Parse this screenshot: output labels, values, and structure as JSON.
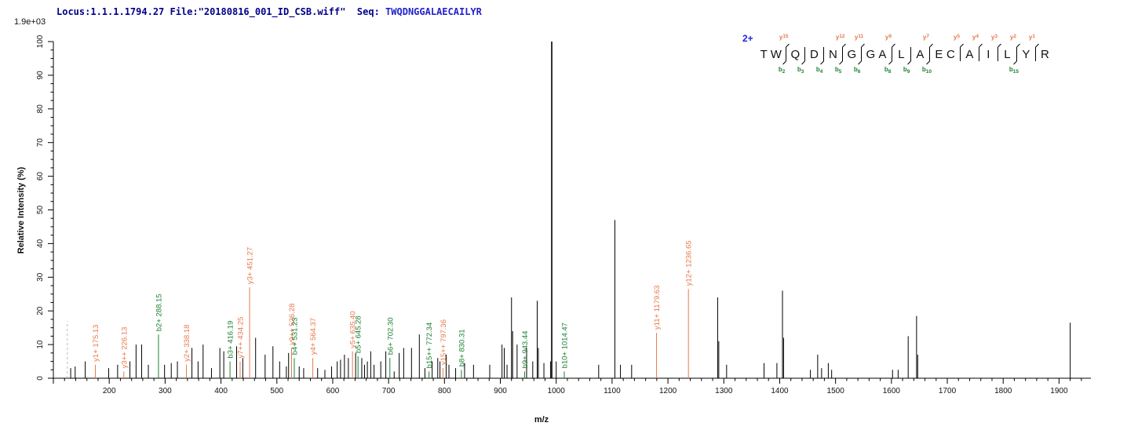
{
  "header": {
    "locus_file": "Locus:1.1.1.1794.27 File:\"20180816_001_ID_CSB.wiff\"",
    "seq_label": "  Seq: ",
    "sequence": "TWQDNGGALAECAILYR",
    "base_intensity": "1.9e+03"
  },
  "annotation": {
    "charge": "2+",
    "residues": [
      "T",
      "W",
      "Q",
      "D",
      "N",
      "G",
      "G",
      "A",
      "L",
      "A",
      "E",
      "C",
      "A",
      "I",
      "L",
      "Y",
      "R"
    ],
    "boundaries": [
      {
        "after": 2,
        "y": "y15",
        "b": "b2"
      },
      {
        "after": 3,
        "y": null,
        "b": "b3"
      },
      {
        "after": 4,
        "y": null,
        "b": "b4"
      },
      {
        "after": 5,
        "y": "y12",
        "b": "b5"
      },
      {
        "after": 6,
        "y": "y11",
        "b": "b6"
      },
      {
        "after": 8,
        "y": "y9",
        "b": "b8"
      },
      {
        "after": 9,
        "y": null,
        "b": "b9"
      },
      {
        "after": 10,
        "y": "y7",
        "b": "b10"
      },
      {
        "after": 12,
        "y": "y5",
        "b": null
      },
      {
        "after": 13,
        "y": "y4",
        "b": null
      },
      {
        "after": 14,
        "y": "y3",
        "b": null
      },
      {
        "after": 15,
        "y": "y2",
        "b": "b15"
      },
      {
        "after": 16,
        "y": "y1",
        "b": null
      }
    ]
  },
  "chart_data": {
    "type": "bar",
    "title": "",
    "xlabel": "m/z",
    "ylabel": "Relative  Intensity (%)",
    "xlim": [
      100,
      1950
    ],
    "ylim": [
      0,
      100
    ],
    "x_major_tick": 100,
    "x_minor_tick": 20,
    "y_major_tick": 10,
    "y_minor_tick": 2.5,
    "x_tick_labels": [
      200,
      300,
      400,
      500,
      600,
      700,
      800,
      900,
      1000,
      1100,
      1200,
      1300,
      1400,
      1500,
      1600,
      1700,
      1800,
      1900
    ],
    "y_tick_labels": [
      0,
      10,
      20,
      30,
      40,
      50,
      60,
      70,
      80,
      90,
      100
    ],
    "legend": "none",
    "grid": false,
    "colors": {
      "y_ion": "#E8784B",
      "b_ion": "#1E8033",
      "unassigned": "#000000",
      "precursor": "#BBBBBB",
      "header_blue": "#00008B",
      "sequence_blue": "#2222CC"
    },
    "peaks": [
      {
        "mz": 125,
        "intensity": 17,
        "series": "precursor"
      },
      {
        "mz": 131,
        "intensity": 3,
        "series": "unassigned"
      },
      {
        "mz": 139,
        "intensity": 3.5,
        "series": "unassigned"
      },
      {
        "mz": 157,
        "intensity": 5,
        "series": "unassigned"
      },
      {
        "mz": 175.13,
        "intensity": 4,
        "series": "y",
        "label": "y1+ 175.13"
      },
      {
        "mz": 199,
        "intensity": 3,
        "series": "unassigned"
      },
      {
        "mz": 215,
        "intensity": 4,
        "series": "unassigned"
      },
      {
        "mz": 226.13,
        "intensity": 2,
        "series": "y",
        "label": "y3++ 226.13"
      },
      {
        "mz": 237,
        "intensity": 5,
        "series": "unassigned"
      },
      {
        "mz": 248,
        "intensity": 10,
        "series": "unassigned"
      },
      {
        "mz": 258,
        "intensity": 10,
        "series": "unassigned"
      },
      {
        "mz": 270,
        "intensity": 4,
        "series": "unassigned"
      },
      {
        "mz": 288.15,
        "intensity": 13,
        "series": "b",
        "label": "b2+ 288.15"
      },
      {
        "mz": 299,
        "intensity": 4,
        "series": "unassigned"
      },
      {
        "mz": 311,
        "intensity": 4.5,
        "series": "unassigned"
      },
      {
        "mz": 322,
        "intensity": 5,
        "series": "unassigned"
      },
      {
        "mz": 338.18,
        "intensity": 4,
        "series": "y",
        "label": "y2+ 338.18"
      },
      {
        "mz": 348,
        "intensity": 9,
        "series": "unassigned"
      },
      {
        "mz": 359,
        "intensity": 5,
        "series": "unassigned"
      },
      {
        "mz": 368,
        "intensity": 10,
        "series": "unassigned"
      },
      {
        "mz": 383,
        "intensity": 3,
        "series": "unassigned"
      },
      {
        "mz": 398,
        "intensity": 9,
        "series": "unassigned"
      },
      {
        "mz": 405,
        "intensity": 8,
        "series": "unassigned"
      },
      {
        "mz": 416.19,
        "intensity": 5,
        "series": "b",
        "label": "b3+ 416.19"
      },
      {
        "mz": 428,
        "intensity": 9.5,
        "series": "unassigned"
      },
      {
        "mz": 434.25,
        "intensity": 5,
        "series": "y",
        "label": "y7++ 434.25"
      },
      {
        "mz": 439,
        "intensity": 6,
        "series": "unassigned"
      },
      {
        "mz": 451.27,
        "intensity": 27,
        "series": "y",
        "label": "y3+ 451.27"
      },
      {
        "mz": 462,
        "intensity": 12,
        "series": "unassigned"
      },
      {
        "mz": 479,
        "intensity": 7,
        "series": "unassigned"
      },
      {
        "mz": 493,
        "intensity": 9.5,
        "series": "unassigned"
      },
      {
        "mz": 505,
        "intensity": 5,
        "series": "unassigned"
      },
      {
        "mz": 517,
        "intensity": 3.5,
        "series": "unassigned"
      },
      {
        "mz": 521,
        "intensity": 7.5,
        "series": "unassigned"
      },
      {
        "mz": 526.28,
        "intensity": 9,
        "series": "y",
        "label": "y9++ 526.28",
        "occluded": true
      },
      {
        "mz": 531.23,
        "intensity": 6,
        "series": "b",
        "label": "b4+ 531.23"
      },
      {
        "mz": 540,
        "intensity": 3.5,
        "series": "unassigned"
      },
      {
        "mz": 548,
        "intensity": 3,
        "series": "unassigned"
      },
      {
        "mz": 564.37,
        "intensity": 6,
        "series": "y",
        "label": "y4+ 564.37"
      },
      {
        "mz": 573,
        "intensity": 3,
        "series": "unassigned"
      },
      {
        "mz": 586,
        "intensity": 2.5,
        "series": "unassigned"
      },
      {
        "mz": 598,
        "intensity": 3.5,
        "series": "unassigned"
      },
      {
        "mz": 608,
        "intensity": 5,
        "series": "unassigned"
      },
      {
        "mz": 614,
        "intensity": 5.5,
        "series": "unassigned"
      },
      {
        "mz": 621,
        "intensity": 7,
        "series": "unassigned"
      },
      {
        "mz": 628,
        "intensity": 6,
        "series": "unassigned"
      },
      {
        "mz": 635.4,
        "intensity": 8,
        "series": "y",
        "label": "y5+ 635.40"
      },
      {
        "mz": 641,
        "intensity": 7.5,
        "series": "unassigned"
      },
      {
        "mz": 645.28,
        "intensity": 6.5,
        "series": "b",
        "label": "b5+ 645.28"
      },
      {
        "mz": 652,
        "intensity": 6,
        "series": "unassigned"
      },
      {
        "mz": 657,
        "intensity": 4,
        "series": "unassigned"
      },
      {
        "mz": 662,
        "intensity": 5,
        "series": "unassigned"
      },
      {
        "mz": 668,
        "intensity": 8,
        "series": "unassigned"
      },
      {
        "mz": 674,
        "intensity": 4,
        "series": "unassigned"
      },
      {
        "mz": 686,
        "intensity": 5,
        "series": "unassigned"
      },
      {
        "mz": 695,
        "intensity": 8,
        "series": "unassigned"
      },
      {
        "mz": 702.3,
        "intensity": 6,
        "series": "b",
        "label": "b6+ 702.30"
      },
      {
        "mz": 710,
        "intensity": 2,
        "series": "unassigned"
      },
      {
        "mz": 719,
        "intensity": 7.5,
        "series": "unassigned"
      },
      {
        "mz": 727,
        "intensity": 9,
        "series": "unassigned"
      },
      {
        "mz": 741,
        "intensity": 9,
        "series": "unassigned"
      },
      {
        "mz": 755,
        "intensity": 13,
        "series": "unassigned"
      },
      {
        "mz": 765,
        "intensity": 3,
        "series": "unassigned"
      },
      {
        "mz": 772.34,
        "intensity": 2,
        "series": "b",
        "label": "b15++ 772.34"
      },
      {
        "mz": 778,
        "intensity": 5,
        "series": "unassigned"
      },
      {
        "mz": 788,
        "intensity": 6,
        "series": "unassigned"
      },
      {
        "mz": 792,
        "intensity": 5,
        "series": "unassigned"
      },
      {
        "mz": 797.36,
        "intensity": 3,
        "series": "y",
        "label": "y15++ 797.36"
      },
      {
        "mz": 803,
        "intensity": 7,
        "series": "unassigned"
      },
      {
        "mz": 808,
        "intensity": 4,
        "series": "unassigned"
      },
      {
        "mz": 820,
        "intensity": 3,
        "series": "unassigned"
      },
      {
        "mz": 830.31,
        "intensity": 2.5,
        "series": "b",
        "label": "b8+ 830.31"
      },
      {
        "mz": 836,
        "intensity": 4.5,
        "series": "unassigned"
      },
      {
        "mz": 852,
        "intensity": 4,
        "series": "unassigned"
      },
      {
        "mz": 881,
        "intensity": 4,
        "series": "unassigned"
      },
      {
        "mz": 903,
        "intensity": 10,
        "series": "unassigned"
      },
      {
        "mz": 907,
        "intensity": 9,
        "series": "unassigned"
      },
      {
        "mz": 912,
        "intensity": 4,
        "series": "unassigned"
      },
      {
        "mz": 920,
        "intensity": 24,
        "series": "unassigned"
      },
      {
        "mz": 922,
        "intensity": 14,
        "series": "unassigned"
      },
      {
        "mz": 930,
        "intensity": 10,
        "series": "unassigned"
      },
      {
        "mz": 943.44,
        "intensity": 2,
        "series": "b",
        "label": "b9+ 943.44"
      },
      {
        "mz": 947,
        "intensity": 9,
        "series": "unassigned"
      },
      {
        "mz": 958,
        "intensity": 5,
        "series": "unassigned"
      },
      {
        "mz": 966,
        "intensity": 23,
        "series": "unassigned"
      },
      {
        "mz": 968,
        "intensity": 9,
        "series": "unassigned"
      },
      {
        "mz": 978,
        "intensity": 4.5,
        "series": "unassigned"
      },
      {
        "mz": 990,
        "intensity": 5,
        "series": "unassigned"
      },
      {
        "mz": 992,
        "intensity": 100,
        "series": "unassigned",
        "base_peak": true
      },
      {
        "mz": 1000,
        "intensity": 5,
        "series": "unassigned"
      },
      {
        "mz": 1014.47,
        "intensity": 2,
        "series": "b",
        "label": "b10+ 1014.47"
      },
      {
        "mz": 1076,
        "intensity": 4,
        "series": "unassigned"
      },
      {
        "mz": 1105,
        "intensity": 47,
        "series": "unassigned"
      },
      {
        "mz": 1115,
        "intensity": 4,
        "series": "unassigned"
      },
      {
        "mz": 1135,
        "intensity": 4,
        "series": "unassigned"
      },
      {
        "mz": 1179.63,
        "intensity": 13.5,
        "series": "y",
        "label": "y11+ 1179.63"
      },
      {
        "mz": 1236.65,
        "intensity": 26.5,
        "series": "y",
        "label": "y12+ 1236.65"
      },
      {
        "mz": 1289,
        "intensity": 24,
        "series": "unassigned"
      },
      {
        "mz": 1291,
        "intensity": 11,
        "series": "unassigned"
      },
      {
        "mz": 1305,
        "intensity": 4,
        "series": "unassigned"
      },
      {
        "mz": 1372,
        "intensity": 4.5,
        "series": "unassigned"
      },
      {
        "mz": 1395,
        "intensity": 4.5,
        "series": "unassigned"
      },
      {
        "mz": 1405,
        "intensity": 26,
        "series": "unassigned"
      },
      {
        "mz": 1407,
        "intensity": 12,
        "series": "unassigned"
      },
      {
        "mz": 1455,
        "intensity": 2.5,
        "series": "unassigned"
      },
      {
        "mz": 1468,
        "intensity": 7,
        "series": "unassigned"
      },
      {
        "mz": 1475,
        "intensity": 3,
        "series": "unassigned"
      },
      {
        "mz": 1487,
        "intensity": 4.5,
        "series": "unassigned"
      },
      {
        "mz": 1493,
        "intensity": 2.5,
        "series": "unassigned"
      },
      {
        "mz": 1602,
        "intensity": 2.5,
        "series": "unassigned"
      },
      {
        "mz": 1612,
        "intensity": 2.5,
        "series": "unassigned"
      },
      {
        "mz": 1630,
        "intensity": 12.5,
        "series": "unassigned"
      },
      {
        "mz": 1645,
        "intensity": 18.5,
        "series": "unassigned"
      },
      {
        "mz": 1647,
        "intensity": 7,
        "series": "unassigned"
      },
      {
        "mz": 1920,
        "intensity": 16.5,
        "series": "unassigned"
      }
    ]
  }
}
